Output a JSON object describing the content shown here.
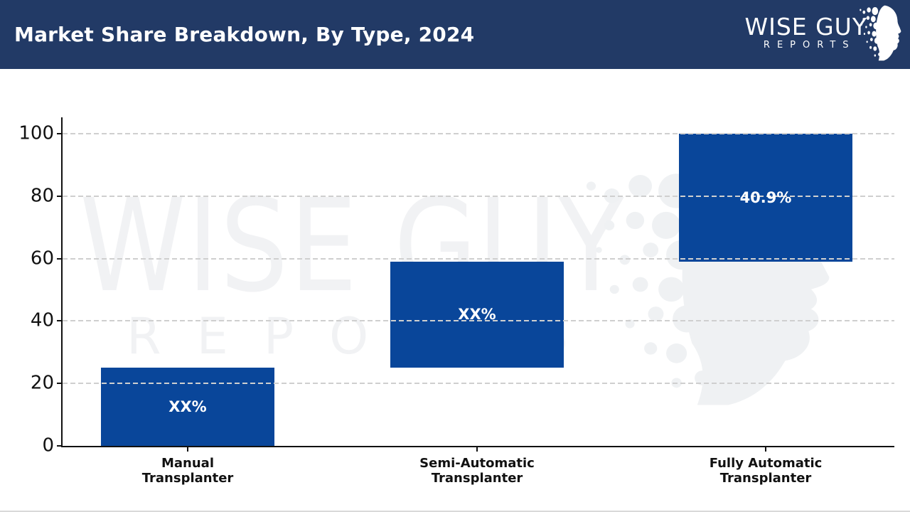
{
  "header": {
    "title": "Market Share Breakdown, By Type, 2024",
    "logo": {
      "line1": "WISE GUY",
      "line2": "REPORTS"
    }
  },
  "watermark": {
    "line1": "WISE GUY",
    "line2": "REPORTS"
  },
  "chart_data": {
    "type": "bar",
    "subtype": "stacked-waterfall",
    "title": "Market Share Breakdown, By Type, 2024",
    "categories": [
      "Manual\nTransplanter",
      "Semi-Automatic\nTransplanter",
      "Fully Automatic\nTransplanter"
    ],
    "segments": [
      {
        "category": "Manual Transplanter",
        "start": 0,
        "end": 25,
        "label": "XX%"
      },
      {
        "category": "Semi-Automatic Transplanter",
        "start": 25,
        "end": 59.1,
        "label": "XX%"
      },
      {
        "category": "Fully Automatic Transplanter",
        "start": 59.1,
        "end": 100,
        "label": "40.9%"
      }
    ],
    "xlabel": "",
    "ylabel": "",
    "ylim": [
      0,
      100
    ],
    "yticks": [
      0,
      20,
      40,
      60,
      80,
      100
    ],
    "grid": "horizontal-dashed",
    "grid_above_bars": true,
    "legend": "none",
    "bar_color": "#09469a",
    "value_label_color": "#ffffff"
  },
  "colors": {
    "header_bg": "#223a66",
    "bar": "#09469a",
    "gridline": "#cfcfcf",
    "axis": "#111111",
    "watermark": "#f1f2f4",
    "page_bg": "#ffffff",
    "bottom_border": "#d9d9d9"
  }
}
